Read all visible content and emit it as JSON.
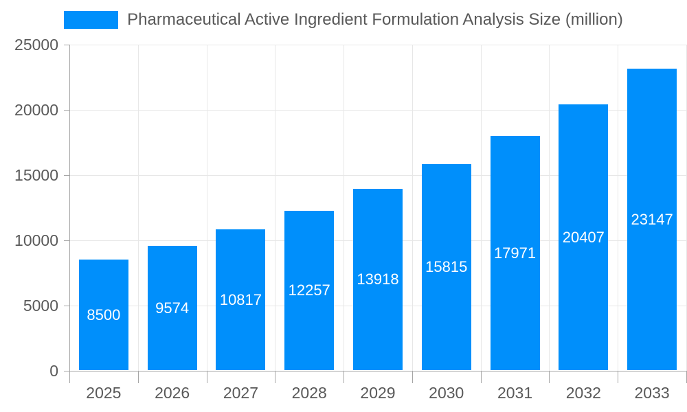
{
  "chart_data": {
    "type": "bar",
    "title": "Pharmaceutical Active Ingredient Formulation Analysis Size (million)",
    "categories": [
      "2025",
      "2026",
      "2027",
      "2028",
      "2029",
      "2030",
      "2031",
      "2032",
      "2033"
    ],
    "values": [
      8500,
      9574,
      10817,
      12257,
      13918,
      15815,
      17971,
      20407,
      23147
    ],
    "xlabel": "",
    "ylabel": "",
    "ylim": [
      0,
      25000
    ],
    "y_ticks": [
      0,
      5000,
      10000,
      15000,
      20000,
      25000
    ],
    "legend_position": "top",
    "grid": true,
    "colors": {
      "bar": "#008ffb",
      "tick_text": "#595959",
      "legend_text": "#595959",
      "value_text": "#ffffff",
      "gridline": "#e7e7e7",
      "axis": "#a6a6a6",
      "background": "#ffffff"
    }
  }
}
